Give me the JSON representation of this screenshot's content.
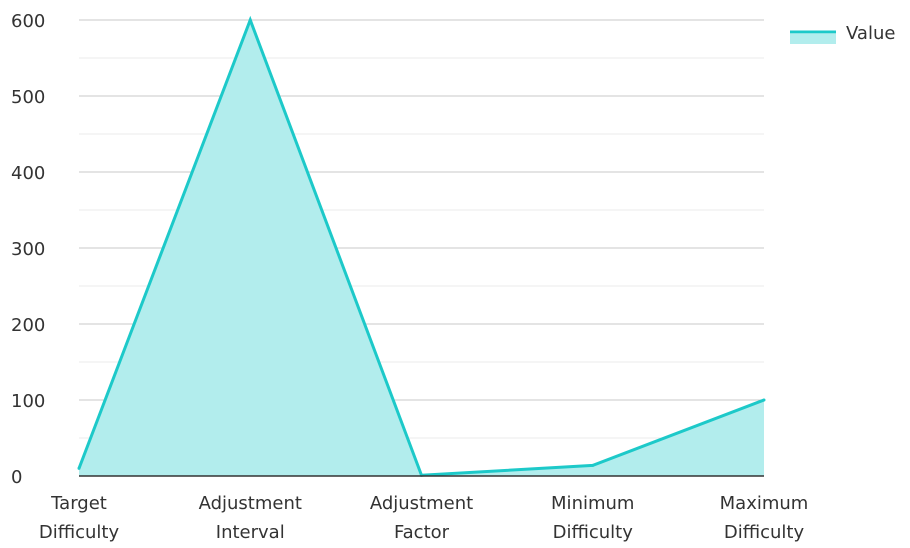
{
  "chart_data": {
    "type": "area",
    "categories": [
      [
        "Target",
        "Difficulty"
      ],
      [
        "Adjustment",
        "Interval"
      ],
      [
        "Adjustment",
        "Factor"
      ],
      [
        "Minimum",
        "Difficulty"
      ],
      [
        "Maximum",
        "Difficulty"
      ]
    ],
    "series": [
      {
        "name": "Value",
        "values": [
          10,
          600,
          1,
          14,
          100
        ],
        "color": "#1dc9c9",
        "fill": "#b2eded"
      }
    ],
    "ylim": [
      0,
      600
    ],
    "yticks": [
      "0",
      "100",
      "200",
      "300",
      "400",
      "500",
      "600"
    ],
    "grid": true,
    "legend": "top-right"
  }
}
